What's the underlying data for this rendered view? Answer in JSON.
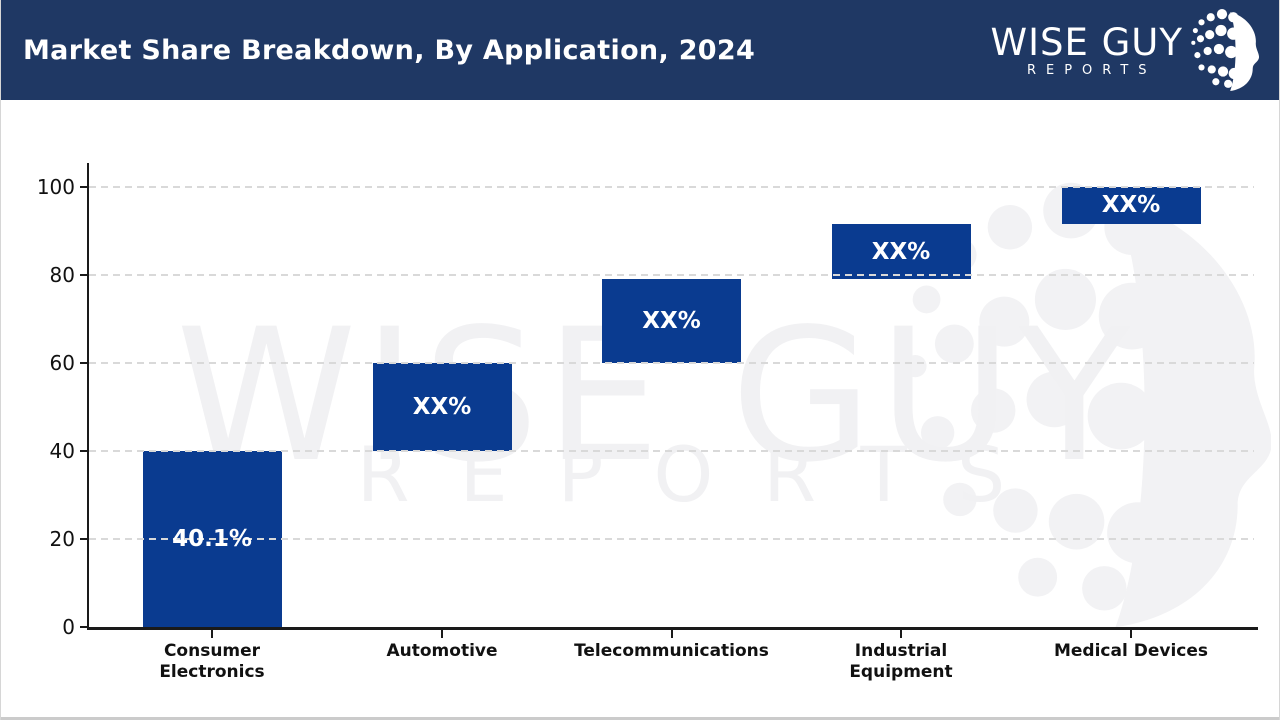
{
  "header": {
    "title": "Market Share Breakdown, By Application, 2024",
    "bg_color": "#1F3864",
    "logo": {
      "line1": "WISE GUY",
      "line2": "REPORTS"
    }
  },
  "watermark": {
    "line1": "WISE GUY",
    "line2": "REPORTS"
  },
  "chart_data": {
    "type": "bar",
    "subtype": "waterfall",
    "title": "Market Share Breakdown, By Application, 2024",
    "categories": [
      "Consumer Electronics",
      "Automotive",
      "Telecommunications",
      "Industrial Equipment",
      "Medical Devices"
    ],
    "category_lines": [
      [
        "Consumer",
        "Electronics"
      ],
      [
        "Automotive"
      ],
      [
        "Telecommunications"
      ],
      [
        "Industrial",
        "Equipment"
      ],
      [
        "Medical Devices"
      ]
    ],
    "bars": [
      {
        "category": "Consumer Electronics",
        "start": 0,
        "end": 40.1,
        "label": "40.1%"
      },
      {
        "category": "Automotive",
        "start": 40.1,
        "end": 60.0,
        "label": "XX%"
      },
      {
        "category": "Telecommunications",
        "start": 60.0,
        "end": 79.0,
        "label": "XX%"
      },
      {
        "category": "Industrial Equipment",
        "start": 79.0,
        "end": 91.6,
        "label": "XX%"
      },
      {
        "category": "Medical Devices",
        "start": 91.6,
        "end": 100.0,
        "label": "XX%"
      }
    ],
    "bar_color": "#0A3B90",
    "yticks": [
      0,
      20,
      40,
      60,
      80,
      100
    ],
    "ylim": [
      0,
      105
    ],
    "xlabel": "",
    "ylabel": "",
    "grid": "horizontal-dashed",
    "gridline_color": "#d9d9d9",
    "legend": "none"
  }
}
